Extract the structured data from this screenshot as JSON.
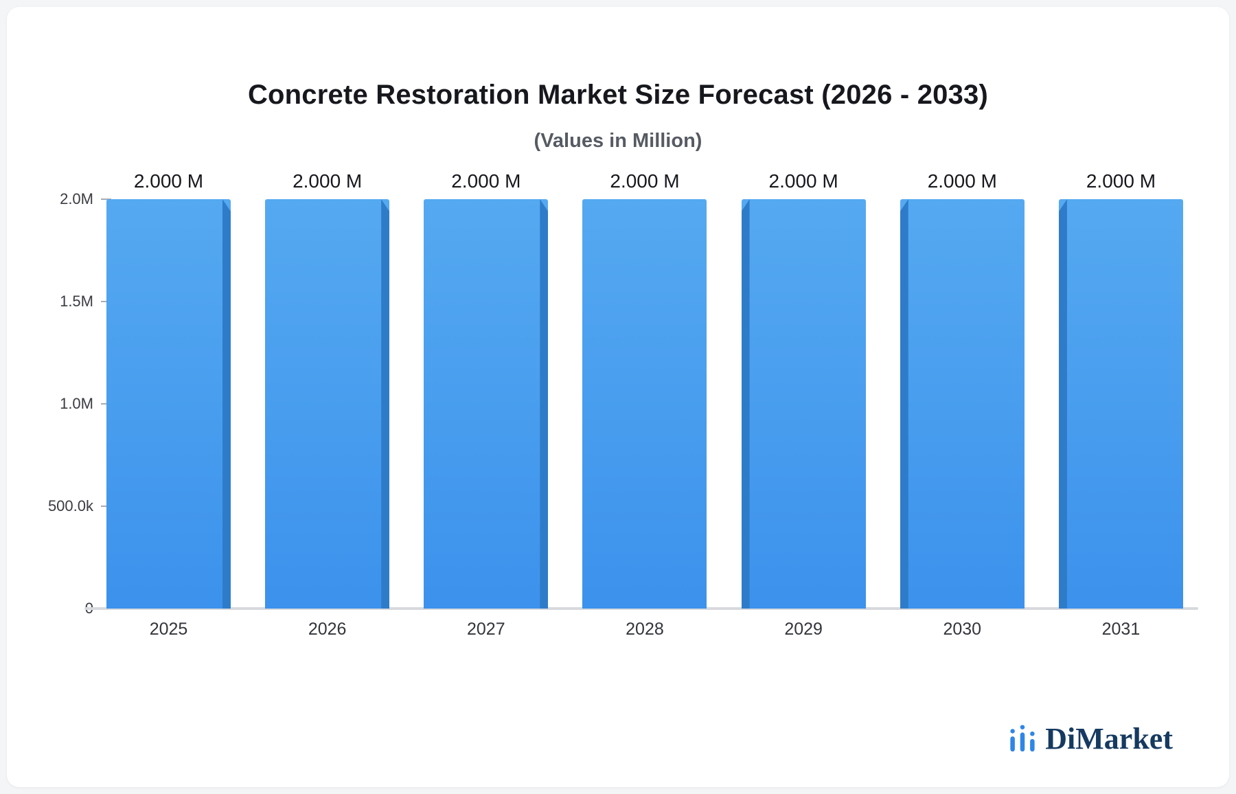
{
  "chart_data": {
    "type": "bar",
    "title": "Concrete Restoration Market Size Forecast (2026 - 2033)",
    "subtitle": "(Values in Million)",
    "categories": [
      "2025",
      "2026",
      "2027",
      "2028",
      "2029",
      "2030",
      "2031"
    ],
    "values": [
      2000000,
      2000000,
      2000000,
      2000000,
      2000000,
      2000000,
      2000000
    ],
    "value_labels": [
      "2.000 M",
      "2.000 M",
      "2.000 M",
      "2.000 M",
      "2.000 M",
      "2.000 M",
      "2.000 M"
    ],
    "y_ticks": [
      {
        "label": "0",
        "value": 0
      },
      {
        "label": "500.0k",
        "value": 500000
      },
      {
        "label": "1.0M",
        "value": 1000000
      },
      {
        "label": "1.5M",
        "value": 1500000
      },
      {
        "label": "2.0M",
        "value": 2000000
      }
    ],
    "ylim": [
      0,
      2000000
    ],
    "xlabel": "",
    "ylabel": "",
    "grid": "off",
    "legend": "none",
    "bar_color_top": "#55a9f1",
    "bar_color_bottom": "#3c92ec",
    "bar_edge_color": "#2e7cc9",
    "baseline_color": "#d8d9de"
  },
  "brand": {
    "name": "DiMarket",
    "icon": "bar-chart-logo-icon",
    "accent_color": "#2e86e8",
    "text_color": "#163a60"
  }
}
